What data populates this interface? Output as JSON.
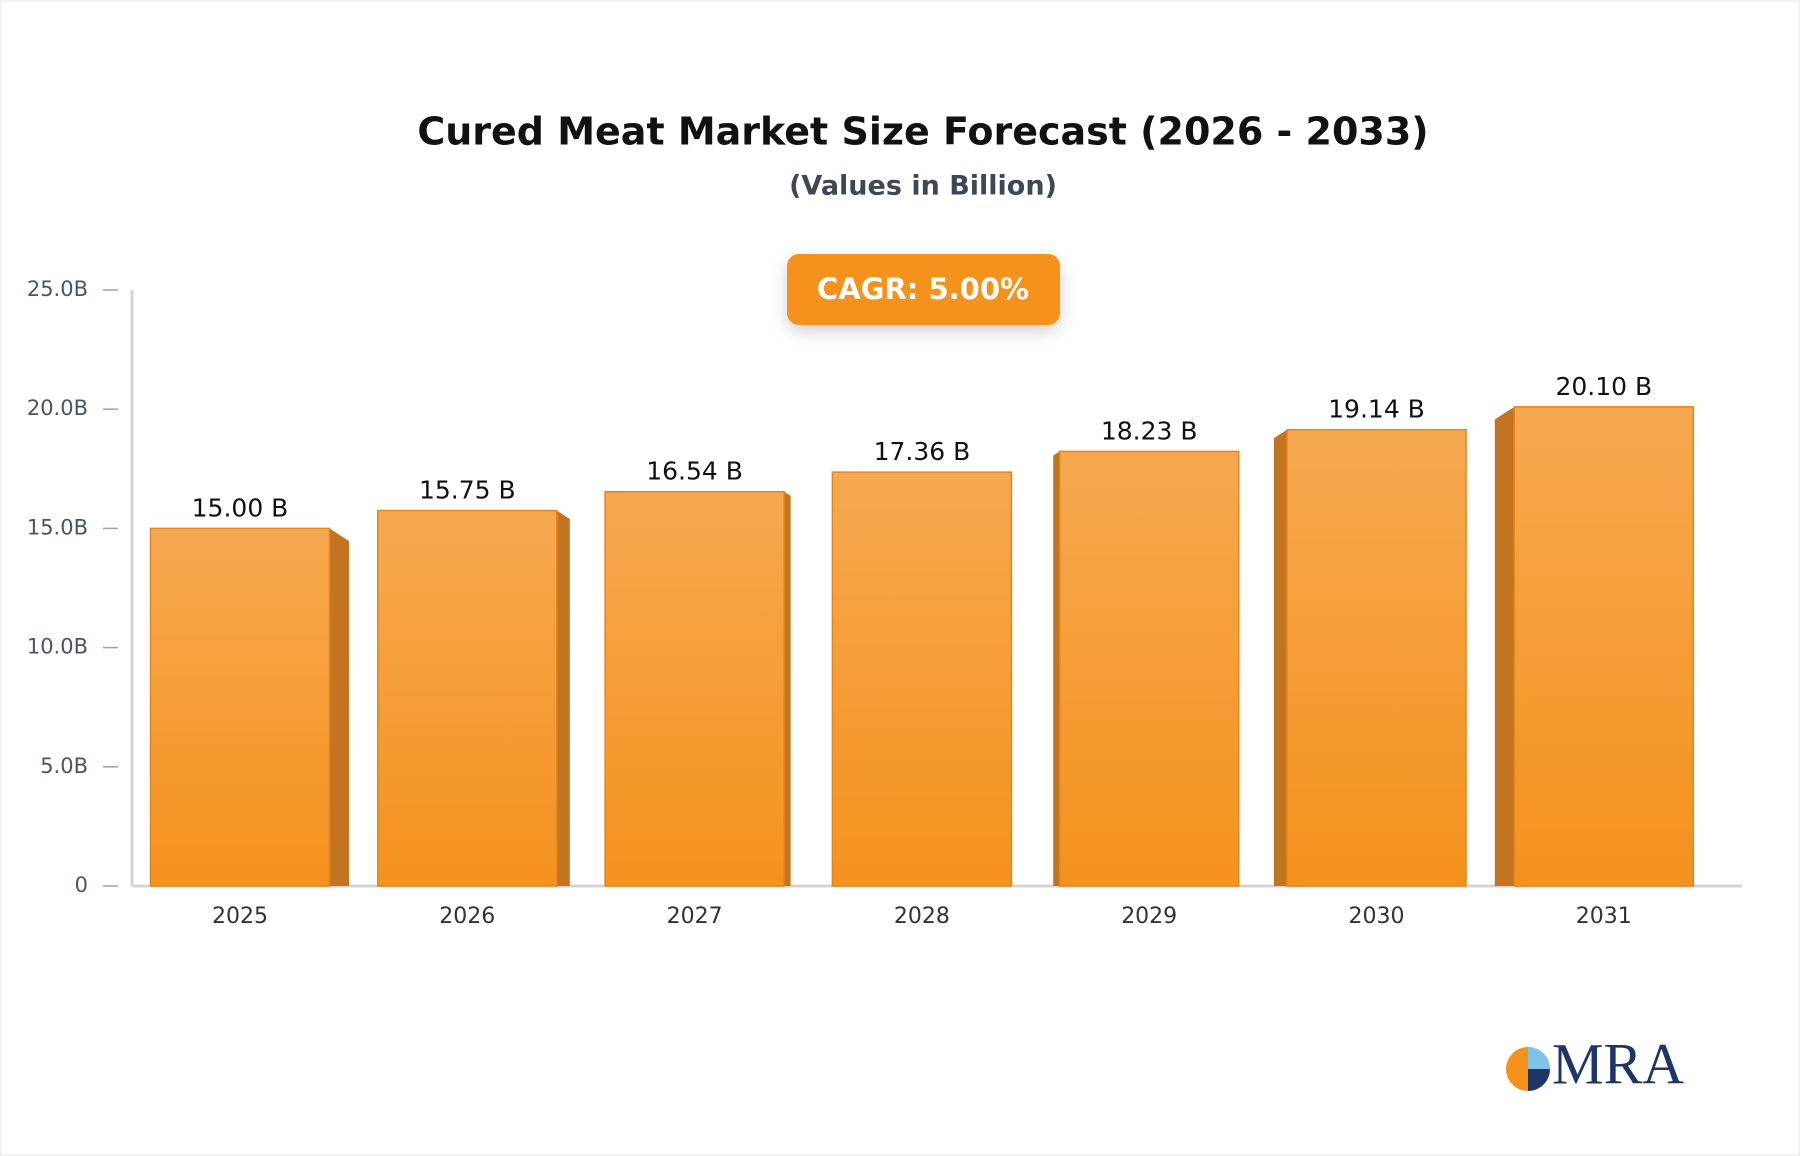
{
  "chart_data": {
    "type": "bar",
    "title": "Cured Meat Market Size Forecast (2026 - 2033)",
    "subtitle": "(Values in Billion)",
    "annotation": "CAGR: 5.00%",
    "watermark": "MRA",
    "categories": [
      "2025",
      "2026",
      "2027",
      "2028",
      "2029",
      "2030",
      "2031"
    ],
    "values": [
      15.0,
      15.75,
      16.54,
      17.36,
      18.23,
      19.14,
      20.1
    ],
    "value_labels": [
      "15.00 B",
      "15.75 B",
      "16.54 B",
      "17.36 B",
      "18.23 B",
      "19.14 B",
      "20.10 B"
    ],
    "color": "#f5992f",
    "ylim": [
      0,
      25
    ],
    "yticks": [
      0,
      {
        "value": 5,
        "label": "5.0B"
      },
      {
        "value": 10,
        "label": "10.0B"
      },
      {
        "value": 15,
        "label": "15.0B"
      },
      {
        "value": 20,
        "label": "20.0B"
      },
      {
        "value": 25,
        "label": "25.0B"
      }
    ],
    "grid": false
  }
}
